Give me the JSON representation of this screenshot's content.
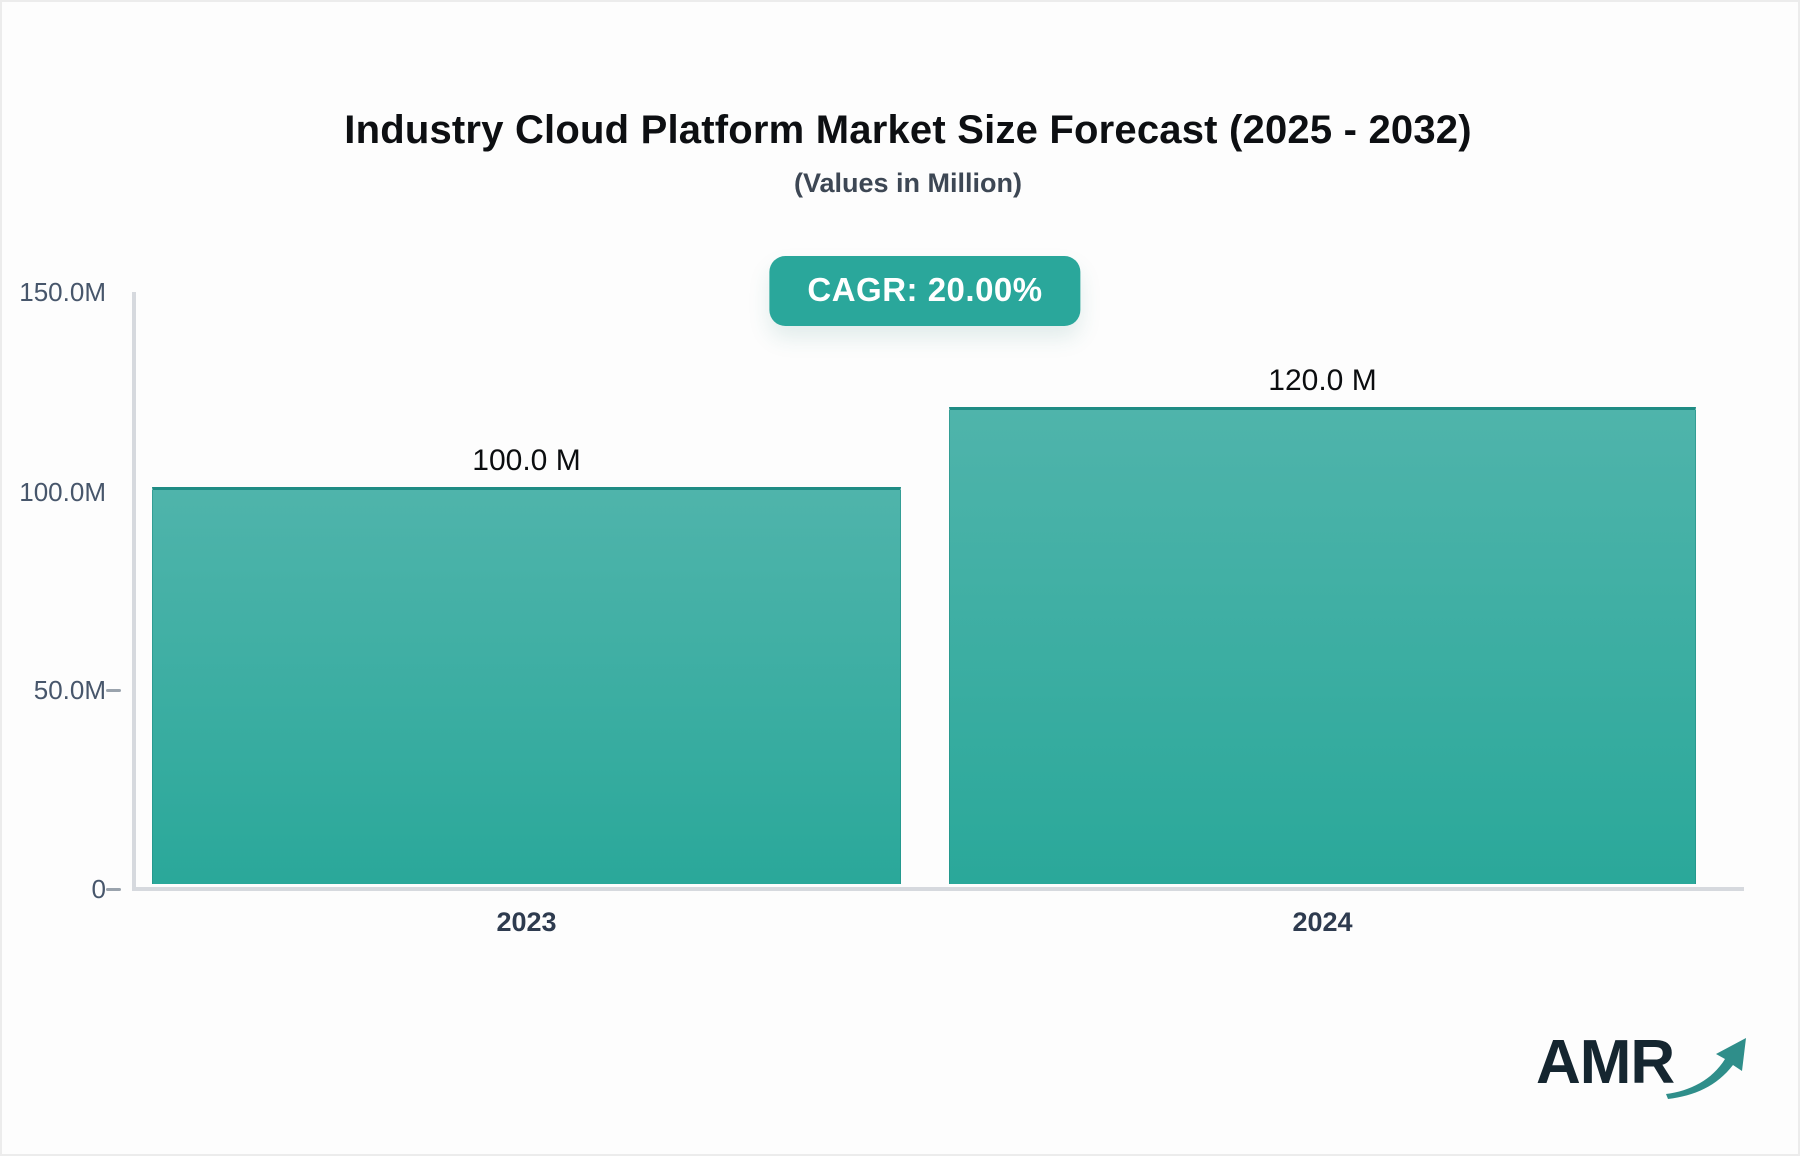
{
  "header": {
    "title": "Industry Cloud Platform Market Size Forecast (2025 - 2032)",
    "subtitle": "(Values in Million)",
    "cagr_badge": "CAGR: 20.00%"
  },
  "chart_data": {
    "type": "bar",
    "title": "Industry Cloud Platform Market Size Forecast (2025 - 2032)",
    "subtitle": "(Values in Million)",
    "unit": "Million",
    "cagr_percent": "20.00%",
    "categories": [
      "2023",
      "2024"
    ],
    "values": [
      100,
      120
    ],
    "value_labels": [
      "100.0 M",
      "120.0 M"
    ],
    "xlabel": "",
    "ylabel": "",
    "ylim": [
      0,
      150
    ],
    "ytick_labels": [
      "150.0M",
      "100.0M",
      "50.0M",
      "0"
    ],
    "grid": false,
    "legend": false,
    "bar_color_top": "#4fb4ab",
    "bar_color_bottom": "#2aa89a",
    "bar_border_color": "#1f8c84",
    "badge_color": "#2aa79b",
    "axis_color": "#d6d9de"
  },
  "logo": {
    "text": "AMR"
  }
}
